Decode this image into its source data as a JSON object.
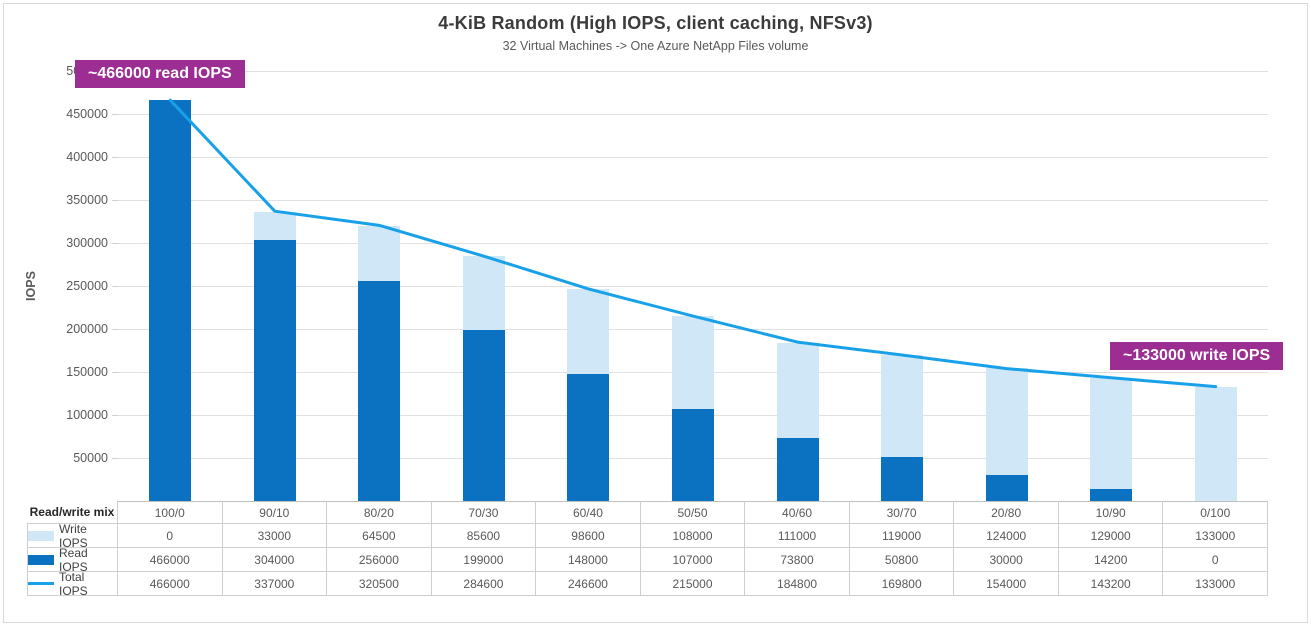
{
  "header": {
    "title": "4-KiB Random (High IOPS, client caching, NFSv3)",
    "subtitle": "32 Virtual Machines -> One Azure NetApp Files volume"
  },
  "colors": {
    "read_bar": "#0b72c2",
    "write_bar": "#cfe7f7",
    "total_line": "#18a1e8",
    "annotation_bg": "#9c2d92",
    "annotation_text": "#ffffff",
    "gridline": "#e0e0e0"
  },
  "chart_data": {
    "type": "bar",
    "subtype": "stacked-column-with-line-overlay",
    "title": "4-KiB Random (High IOPS, client caching, NFSv3)",
    "subtitle": "32 Virtual Machines -> One Azure NetApp Files volume",
    "xlabel": "Read/write mix",
    "ylabel": "IOPS",
    "ylim": [
      0,
      500000
    ],
    "ytick_step": 50000,
    "grid": "horizontal",
    "legend_position": "table-row-labels",
    "categories": [
      "100/0",
      "90/10",
      "80/20",
      "70/30",
      "60/40",
      "50/50",
      "40/60",
      "30/70",
      "20/80",
      "10/90",
      "0/100"
    ],
    "series": [
      {
        "name": "Write IOPS",
        "kind": "bar-segment-top",
        "color": "#cfe7f7",
        "values": [
          0,
          33000,
          64500,
          85600,
          98600,
          108000,
          111000,
          119000,
          124000,
          129000,
          133000
        ]
      },
      {
        "name": "Read IOPS",
        "kind": "bar-segment-bottom",
        "color": "#0b72c2",
        "values": [
          466000,
          304000,
          256000,
          199000,
          148000,
          107000,
          73800,
          50800,
          30000,
          14200,
          0
        ]
      },
      {
        "name": "Total IOPS",
        "kind": "line",
        "color": "#18a1e8",
        "values": [
          466000,
          337000,
          320500,
          284600,
          246600,
          215000,
          184800,
          169800,
          154000,
          143200,
          133000
        ]
      }
    ],
    "annotations": [
      {
        "text": "~466000 read IOPS",
        "anchor": "top-of-first-bar"
      },
      {
        "text": "~133000 write IOPS",
        "anchor": "top-of-last-bar"
      }
    ]
  }
}
